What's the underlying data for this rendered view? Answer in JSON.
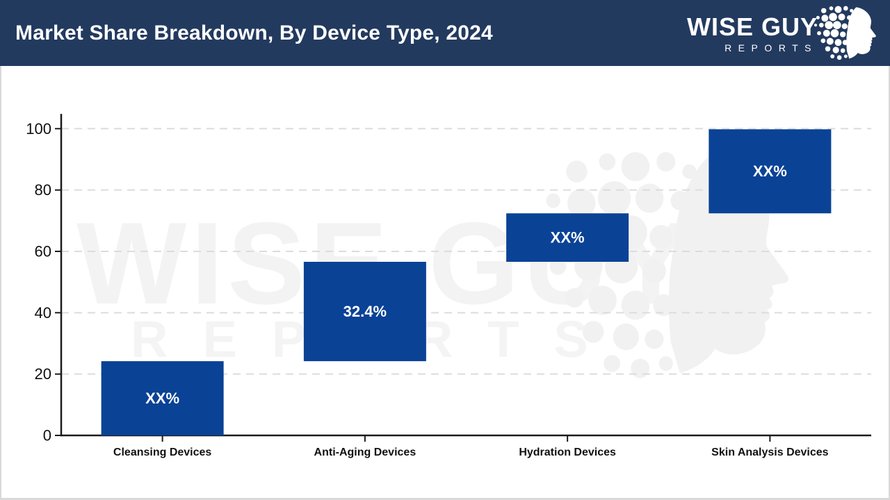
{
  "header": {
    "title": "Market Share Breakdown, By Device Type, 2024",
    "logo_line1": "WISE GUY",
    "logo_line2": "REPORTS"
  },
  "watermark": {
    "line1": "WISE GUY",
    "line2": "REPORTS"
  },
  "colors": {
    "header_bg": "#233a5f",
    "bar": "#0a4296",
    "bar_label": "#ffffff",
    "axis": "#1a1a1a",
    "grid": "#dcdcdc",
    "tick_label": "#111111",
    "watermark": "#f1f1f1"
  },
  "chart_data": {
    "type": "bar",
    "subtype": "floating-waterfall",
    "title": "Market Share Breakdown, By Device Type, 2024",
    "categories": [
      "Cleansing Devices",
      "Anti-Aging Devices",
      "Hydration Devices",
      "Skin Analysis Devices"
    ],
    "segments": [
      {
        "category": "Cleansing Devices",
        "start": 0,
        "end": 24.2,
        "label": "XX%"
      },
      {
        "category": "Anti-Aging Devices",
        "start": 24.2,
        "end": 56.6,
        "label": "32.4%"
      },
      {
        "category": "Hydration Devices",
        "start": 56.6,
        "end": 72.4,
        "label": "XX%"
      },
      {
        "category": "Skin Analysis Devices",
        "start": 72.4,
        "end": 99.8,
        "label": "XX%"
      }
    ],
    "xlabel": "",
    "ylabel": "",
    "ylim": [
      0,
      100
    ],
    "yticks": [
      0,
      20,
      40,
      60,
      80,
      100
    ],
    "grid": "horizontal dashed",
    "legend": "none"
  }
}
